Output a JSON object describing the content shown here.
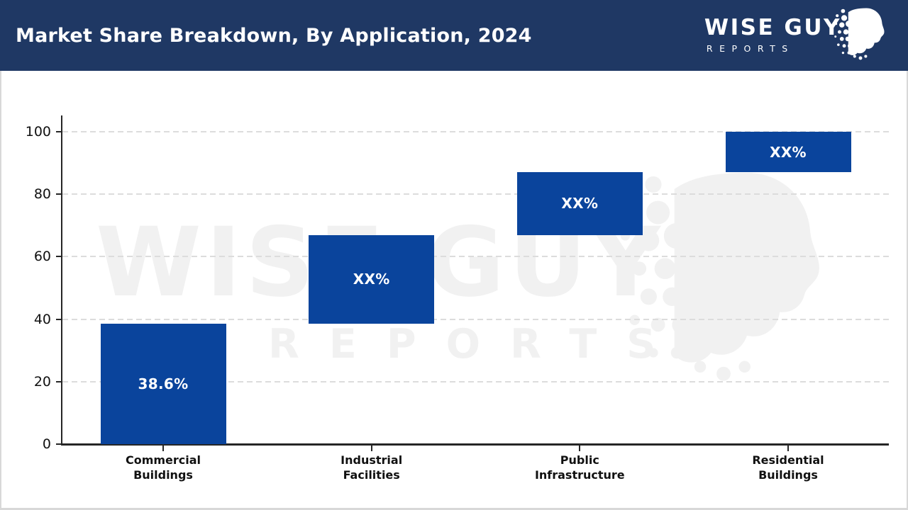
{
  "header": {
    "title": "Market Share Breakdown, By Application, 2024",
    "logo_line1": "WISE GUY",
    "logo_line2": "REPORTS"
  },
  "watermark": {
    "line1": "WISE GUY",
    "line2": "REPORTS"
  },
  "colors": {
    "header_bg": "#1f3864",
    "bar": "#0a449c",
    "grid": "#dcdcdc",
    "axis": "#262626",
    "watermark": "#f1f1f1"
  },
  "chart_data": {
    "type": "bar",
    "variant": "waterfall",
    "title": "Market Share Breakdown, By Application, 2024",
    "categories": [
      "Commercial Buildings",
      "Industrial Facilities",
      "Public Infrastructure",
      "Residential Buildings"
    ],
    "segments": [
      {
        "category": "Commercial Buildings",
        "start": 0,
        "end": 38.6,
        "label": "38.6%"
      },
      {
        "category": "Industrial Facilities",
        "start": 38.6,
        "end": 67,
        "label": "XX%"
      },
      {
        "category": "Public Infrastructure",
        "start": 67,
        "end": 87,
        "label": "XX%"
      },
      {
        "category": "Residential Buildings",
        "start": 87,
        "end": 100,
        "label": "XX%"
      }
    ],
    "bar_labels": [
      "38.6%",
      "XX%",
      "XX%",
      "XX%"
    ],
    "yticks": [
      0,
      20,
      40,
      60,
      80,
      100
    ],
    "ylim": [
      0,
      105
    ],
    "xlabel": "",
    "ylabel": "",
    "grid": "horizontal-dashed",
    "legend": "none"
  }
}
